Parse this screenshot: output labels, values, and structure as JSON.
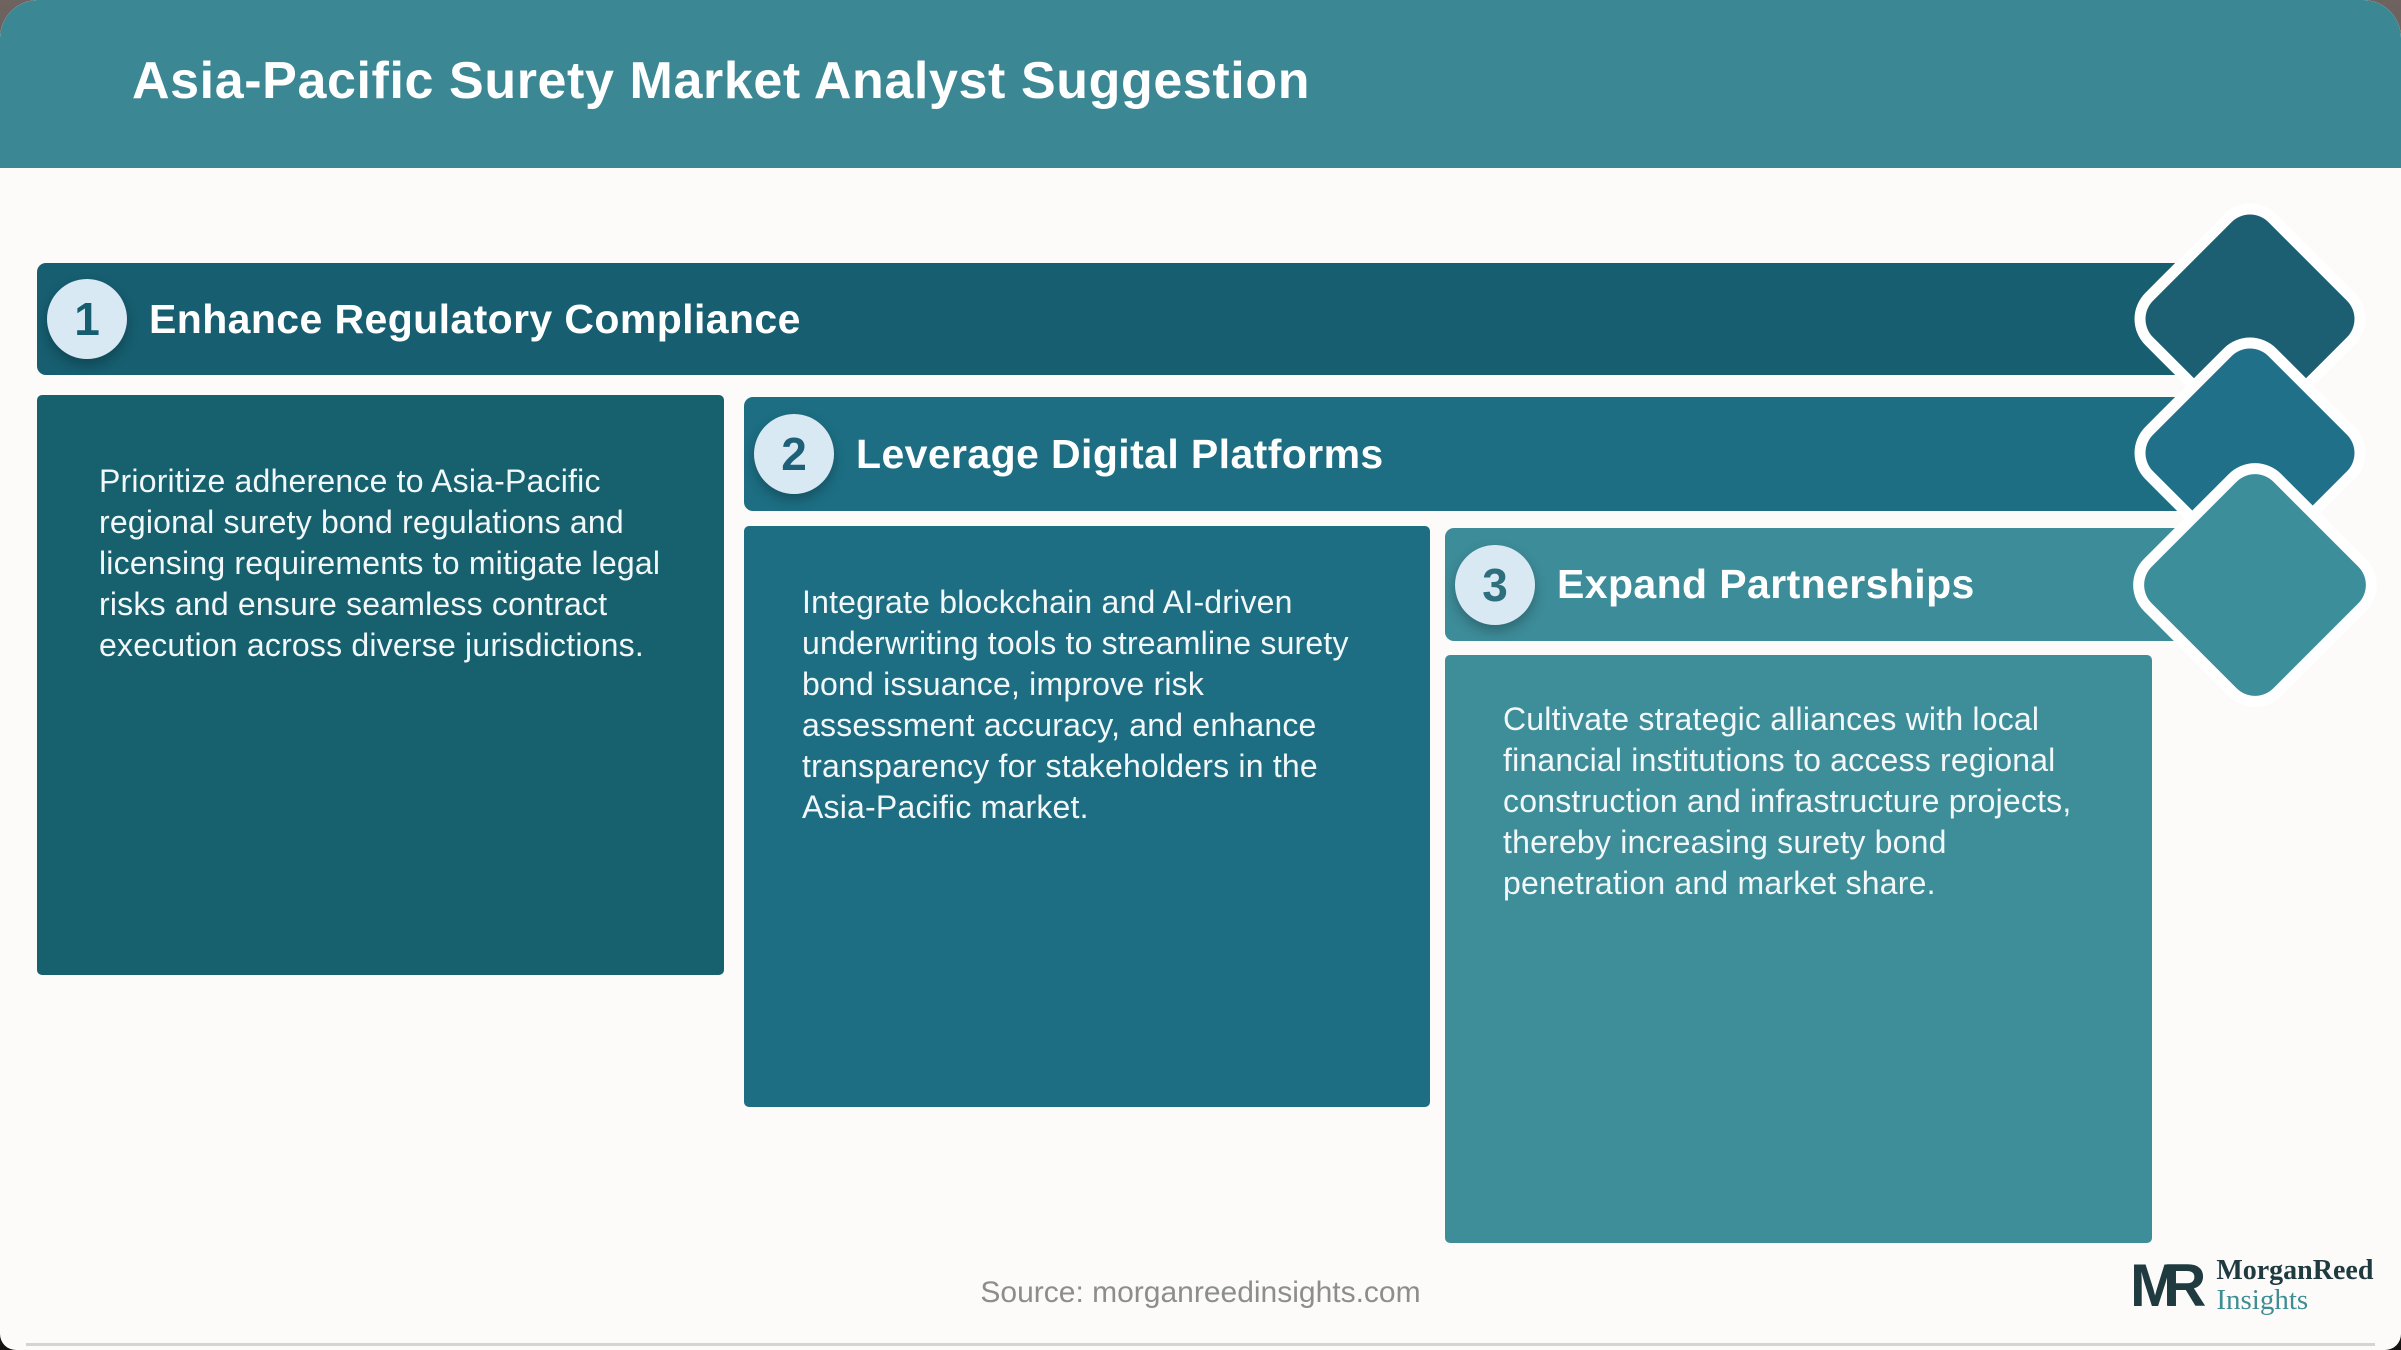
{
  "page": {
    "title": "Asia-Pacific Surety Market Analyst Suggestion",
    "source_text": "Source: morganreedinsights.com"
  },
  "colors": {
    "backdrop_top": "#6F6360",
    "canvas": "#FCFBF9",
    "header_bg": "#3B8794",
    "title_text": "#FFFFFF",
    "badge_bg": "#D9E9F4",
    "body_text": "#F2F7F9",
    "source_text": "#8D8D8D",
    "divider": "#D4D4D4",
    "logo_dark": "#1F3B40",
    "logo_teal": "#3F8D94"
  },
  "steps": [
    {
      "number": "1",
      "title": "Enhance Regulatory Compliance",
      "description": "Prioritize adherence to Asia-Pacific regional surety bond regulations and licensing requirements to mitigate legal risks and ensure seamless contract execution across diverse jurisdictions.",
      "banner_color": "#165E70",
      "box_color": "#17616F",
      "arrow_color": "#1C5F73",
      "number_color": "#175D70"
    },
    {
      "number": "2",
      "title": "Leverage Digital Platforms",
      "description": "Integrate blockchain and AI-driven underwriting tools to streamline surety bond issuance, improve risk assessment accuracy, and enhance transparency for stakeholders in the Asia-Pacific market.",
      "banner_color": "#1D6E83",
      "box_color": "#1D6E83",
      "arrow_color": "#217089",
      "number_color": "#1D6078"
    },
    {
      "number": "3",
      "title": "Expand Partnerships",
      "description": "Cultivate strategic alliances with local financial institutions to access regional construction and infrastructure projects, thereby increasing surety bond penetration and market share.",
      "banner_color": "#3D8C99",
      "box_color": "#3E8E99",
      "arrow_color": "#3C8E9B",
      "number_color": "#2E6F7E"
    }
  ],
  "logo": {
    "monogram_m": "M",
    "monogram_r": "R",
    "name": "MorganReed",
    "tagline": "Insights"
  }
}
